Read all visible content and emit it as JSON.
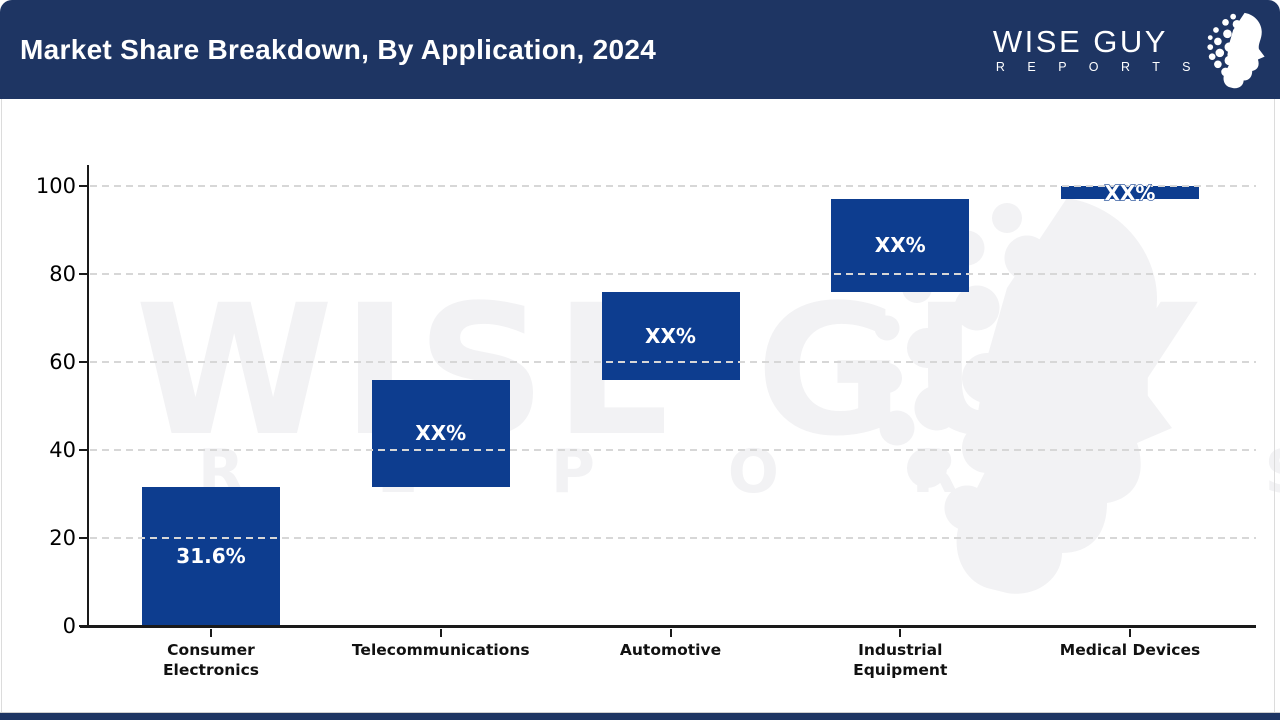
{
  "header": {
    "title": "Market Share Breakdown, By Application, 2024",
    "logo": {
      "primary": "WISE GUY",
      "secondary": "R E P O R T S"
    }
  },
  "watermark": {
    "primary": "WISE GUY",
    "secondary": "R E P O R T S"
  },
  "chart_data": {
    "type": "bar",
    "variant": "waterfall",
    "title": "Market Share Breakdown, By Application, 2024",
    "categories": [
      "Consumer Electronics",
      "Telecommunications",
      "Automotive",
      "Industrial Equipment",
      "Medical Devices"
    ],
    "tick_display": [
      "Consumer\nElectronics",
      "Telecommunications",
      "Automotive",
      "Industrial\nEquipment",
      "Medical Devices"
    ],
    "segments": [
      {
        "category": "Consumer Electronics",
        "start": 0,
        "end": 31.6,
        "label": "31.6%"
      },
      {
        "category": "Telecommunications",
        "start": 31.6,
        "end": 56,
        "label": "XX%"
      },
      {
        "category": "Automotive",
        "start": 56,
        "end": 76,
        "label": "XX%"
      },
      {
        "category": "Industrial Equipment",
        "start": 76,
        "end": 97,
        "label": "XX%"
      },
      {
        "category": "Medical Devices",
        "start": 97,
        "end": 100,
        "label": "XX%"
      }
    ],
    "xlabel": "",
    "ylabel": "",
    "ylim": [
      0,
      100
    ],
    "yticks": [
      0,
      20,
      40,
      60,
      80,
      100
    ],
    "grid": {
      "horizontal": true,
      "style": "dashed",
      "color": "#d7d7d7",
      "above_bars": true
    },
    "legend": "none",
    "colors": {
      "bar": "#0d3d8f",
      "bar_label": "#ffffff",
      "axis": "#1a1a1a",
      "tick_text": "#000000",
      "header_bg": "#1e3563",
      "footer_bg": "#1e3563",
      "watermark": "#f2f2f4"
    }
  }
}
